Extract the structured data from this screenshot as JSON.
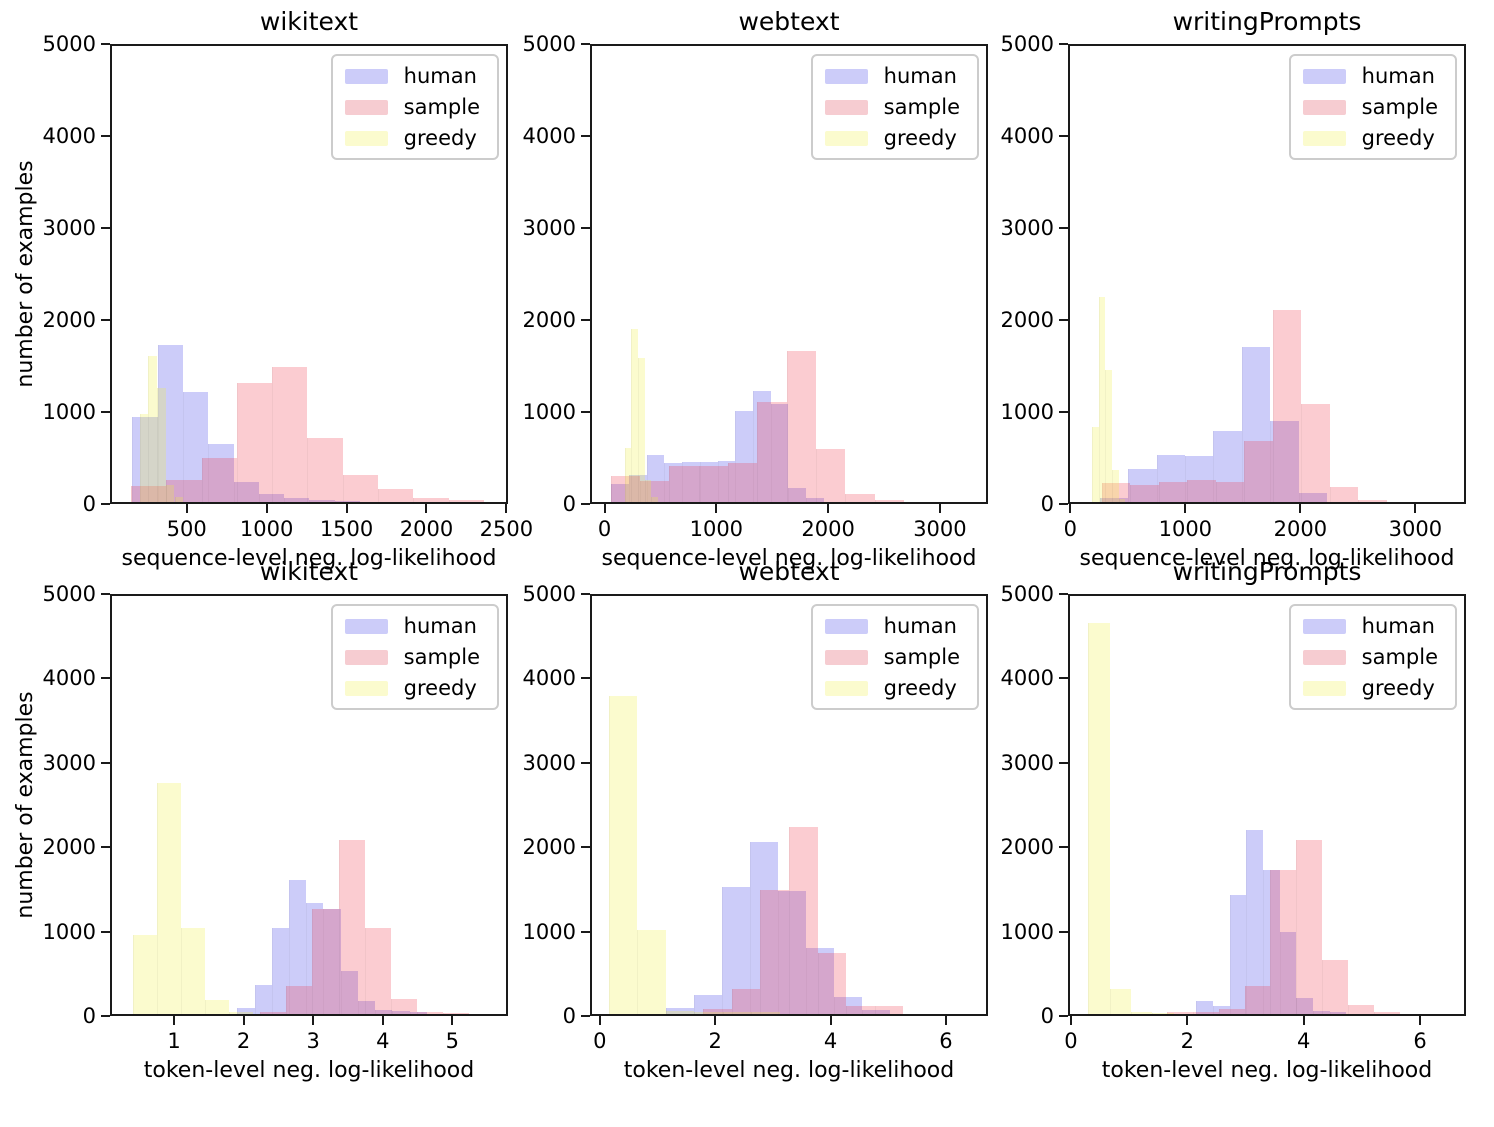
{
  "figure": {
    "background": "#ffffff",
    "spine_color": "#1a1a1a",
    "text_color": "#000000",
    "legend_border_color": "#cccccc",
    "series": [
      {
        "name": "human",
        "bar_color": "rgba(50,50,230,0.25)",
        "legend_color": "#ccccf9"
      },
      {
        "name": "sample",
        "bar_color": "rgba(240,50,70,0.25)",
        "legend_color": "#f6ccd1"
      },
      {
        "name": "greedy",
        "bar_color": "rgba(240,240,60,0.25)",
        "legend_color": "#fbfbce"
      }
    ]
  },
  "chart_data": [
    {
      "type": "bar",
      "subtype": "histogram",
      "title": "wikitext",
      "xlabel": "sequence-level neg. log-likelihood",
      "ylabel": "number of examples",
      "xlim": [
        20,
        2510
      ],
      "ylim": [
        0,
        5000
      ],
      "xticks": [
        500,
        1000,
        1500,
        2000,
        2500
      ],
      "yticks": [
        0,
        1000,
        2000,
        3000,
        4000,
        5000
      ],
      "legend": [
        "human",
        "sample",
        "greedy"
      ],
      "legend_position": "upper right",
      "grid": false,
      "series": [
        {
          "name": "human",
          "bin_edges": [
            148,
            308,
            468,
            628,
            788,
            948,
            1108,
            1268,
            1428,
            1588,
            1748
          ],
          "counts": [
            930,
            1720,
            1210,
            640,
            220,
            90,
            40,
            20,
            10,
            5
          ]
        },
        {
          "name": "sample",
          "bin_edges": [
            140,
            363,
            586,
            809,
            1032,
            1255,
            1478,
            1701,
            1924,
            2147,
            2370
          ],
          "counts": [
            180,
            240,
            480,
            1310,
            1480,
            700,
            300,
            140,
            40,
            25
          ]
        },
        {
          "name": "greedy",
          "bin_edges": [
            195,
            250,
            305,
            360,
            415,
            470
          ],
          "counts": [
            960,
            1600,
            1250,
            190,
            50
          ]
        }
      ]
    },
    {
      "type": "bar",
      "subtype": "histogram",
      "title": "webtext",
      "xlabel": "sequence-level neg. log-likelihood",
      "ylabel": "",
      "xlim": [
        -130,
        3430
      ],
      "ylim": [
        0,
        5000
      ],
      "xticks": [
        0,
        1000,
        2000,
        3000
      ],
      "yticks": [
        0,
        1000,
        2000,
        3000,
        4000,
        5000
      ],
      "legend": [
        "human",
        "sample",
        "greedy"
      ],
      "legend_position": "upper right",
      "grid": false,
      "series": [
        {
          "name": "human",
          "bin_edges": [
            45,
            205,
            365,
            525,
            685,
            845,
            1005,
            1165,
            1325,
            1485,
            1645,
            1805,
            1965
          ],
          "counts": [
            200,
            300,
            520,
            430,
            440,
            440,
            450,
            1000,
            1220,
            1080,
            150,
            40
          ]
        },
        {
          "name": "sample",
          "bin_edges": [
            40,
            305,
            570,
            835,
            1100,
            1365,
            1630,
            1895,
            2160,
            2425,
            2690
          ],
          "counts": [
            290,
            230,
            390,
            400,
            430,
            1100,
            1660,
            580,
            90,
            20
          ]
        },
        {
          "name": "greedy",
          "bin_edges": [
            165,
            225,
            285,
            345,
            405,
            465
          ],
          "counts": [
            590,
            1900,
            1580,
            240,
            60
          ]
        }
      ]
    },
    {
      "type": "bar",
      "subtype": "histogram",
      "title": "writingPrompts",
      "xlabel": "sequence-level neg. log-likelihood",
      "ylabel": "",
      "xlim": [
        -20,
        3440
      ],
      "ylim": [
        0,
        5000
      ],
      "xticks": [
        0,
        1000,
        2000,
        3000
      ],
      "yticks": [
        0,
        1000,
        2000,
        3000,
        4000,
        5000
      ],
      "legend": [
        "human",
        "sample",
        "greedy"
      ],
      "legend_position": "upper right",
      "grid": false,
      "series": [
        {
          "name": "human",
          "bin_edges": [
            240,
            490,
            740,
            990,
            1240,
            1490,
            1740,
            1990,
            2240
          ],
          "counts": [
            40,
            360,
            520,
            500,
            780,
            1700,
            890,
            100
          ]
        },
        {
          "name": "sample",
          "bin_edges": [
            260,
            510,
            760,
            1010,
            1260,
            1510,
            1760,
            2010,
            2260,
            2510,
            2760
          ],
          "counts": [
            210,
            190,
            215,
            240,
            220,
            670,
            2100,
            1080,
            160,
            20
          ]
        },
        {
          "name": "greedy",
          "bin_edges": [
            175,
            233,
            291,
            349,
            407,
            465
          ],
          "counts": [
            820,
            2250,
            1450,
            350,
            30
          ]
        }
      ]
    },
    {
      "type": "bar",
      "subtype": "histogram",
      "title": "wikitext",
      "xlabel": "token-level neg. log-likelihood",
      "ylabel": "number of examples",
      "xlim": [
        0.08,
        5.8
      ],
      "ylim": [
        0,
        5000
      ],
      "xticks": [
        1,
        2,
        3,
        4,
        5
      ],
      "yticks": [
        0,
        1000,
        2000,
        3000,
        4000,
        5000
      ],
      "legend": [
        "human",
        "sample",
        "greedy"
      ],
      "legend_position": "upper right",
      "grid": false,
      "series": [
        {
          "name": "human",
          "bin_edges": [
            1.9,
            2.15,
            2.4,
            2.65,
            2.9,
            3.15,
            3.4,
            3.65,
            3.9,
            4.15,
            4.4,
            4.65
          ],
          "counts": [
            70,
            350,
            1030,
            1600,
            1330,
            1260,
            520,
            150,
            50,
            40,
            30
          ]
        },
        {
          "name": "sample",
          "bin_edges": [
            2.23,
            2.61,
            2.99,
            3.37,
            3.75,
            4.13,
            4.51,
            4.89,
            5.27
          ],
          "counts": [
            30,
            330,
            1260,
            2080,
            1030,
            180,
            30,
            10
          ]
        },
        {
          "name": "greedy",
          "bin_edges": [
            0.38,
            0.73,
            1.08,
            1.43,
            1.78,
            2.13
          ],
          "counts": [
            950,
            2760,
            1030,
            170,
            20
          ]
        }
      ]
    },
    {
      "type": "bar",
      "subtype": "histogram",
      "title": "webtext",
      "xlabel": "token-level neg. log-likelihood",
      "ylabel": "",
      "xlim": [
        -0.17,
        6.73
      ],
      "ylim": [
        0,
        5000
      ],
      "xticks": [
        0,
        2,
        4,
        6
      ],
      "yticks": [
        0,
        1000,
        2000,
        3000,
        4000,
        5000
      ],
      "legend": [
        "human",
        "sample",
        "greedy"
      ],
      "legend_position": "upper right",
      "grid": false,
      "series": [
        {
          "name": "human",
          "bin_edges": [
            1.13,
            1.62,
            2.11,
            2.6,
            3.09,
            3.58,
            4.07,
            4.56,
            5.05
          ],
          "counts": [
            70,
            230,
            1520,
            2060,
            1470,
            790,
            200,
            50
          ]
        },
        {
          "name": "sample",
          "bin_edges": [
            1.78,
            2.28,
            2.78,
            3.28,
            3.78,
            4.28,
            4.78,
            5.28
          ],
          "counts": [
            60,
            300,
            1480,
            2240,
            730,
            100,
            90
          ]
        },
        {
          "name": "greedy",
          "bin_edges": [
            0.12,
            0.62,
            1.12,
            1.62,
            2.12,
            2.62,
            3.12
          ],
          "counts": [
            3800,
            1010,
            40,
            30,
            30,
            20
          ]
        }
      ]
    },
    {
      "type": "bar",
      "subtype": "histogram",
      "title": "writingPrompts",
      "xlabel": "token-level neg. log-likelihood",
      "ylabel": "",
      "xlim": [
        -0.05,
        6.79
      ],
      "ylim": [
        0,
        5000
      ],
      "xticks": [
        0,
        2,
        4,
        6
      ],
      "yticks": [
        0,
        1000,
        2000,
        3000,
        4000,
        5000
      ],
      "legend": [
        "human",
        "sample",
        "greedy"
      ],
      "legend_position": "upper right",
      "grid": false,
      "series": [
        {
          "name": "human",
          "bin_edges": [
            2.14,
            2.43,
            2.72,
            3.01,
            3.3,
            3.59,
            3.88,
            4.17,
            4.46,
            4.75
          ],
          "counts": [
            160,
            90,
            1420,
            2200,
            1720,
            980,
            190,
            40,
            20
          ]
        },
        {
          "name": "sample",
          "bin_edges": [
            1.63,
            2.08,
            2.53,
            2.98,
            3.43,
            3.88,
            4.33,
            4.78,
            5.23,
            5.68
          ],
          "counts": [
            20,
            30,
            60,
            340,
            1720,
            2080,
            650,
            110,
            20
          ]
        },
        {
          "name": "greedy",
          "bin_edges": [
            0.27,
            0.64,
            1.01,
            1.38,
            1.75
          ],
          "counts": [
            4680,
            300,
            20,
            10
          ]
        }
      ]
    }
  ]
}
